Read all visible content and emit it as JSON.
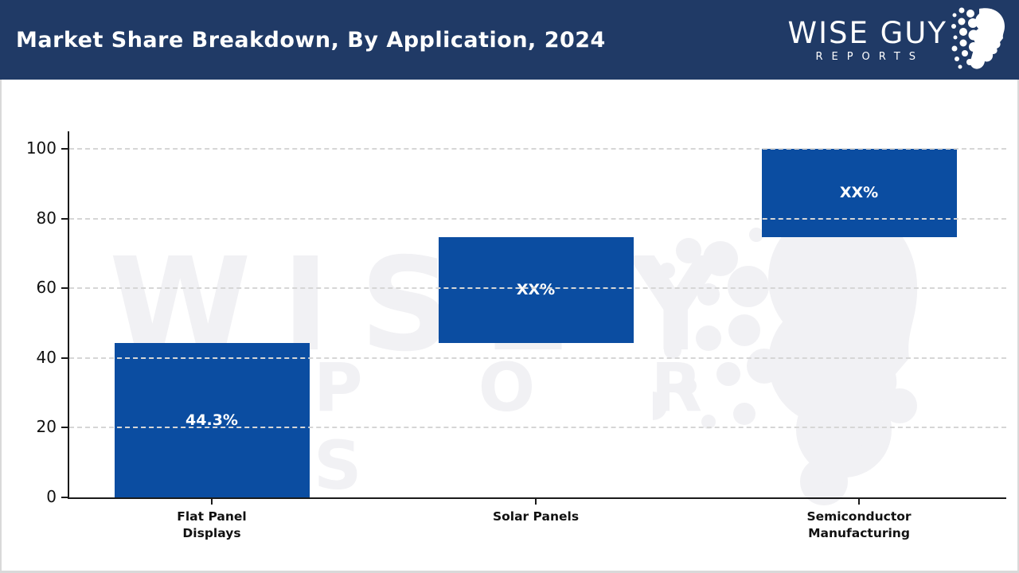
{
  "header": {
    "title": "Market Share Breakdown, By Application, 2024",
    "logo": {
      "line1": "WISE GUY",
      "line2": "REPORTS"
    }
  },
  "watermark": {
    "word1": "WISE",
    "word2": "Y",
    "word3": "P O R T S"
  },
  "colors": {
    "header_bg": "#203a66",
    "bar": "#0b4da1",
    "grid": "#d6d6d6",
    "axis": "#1a1a1a",
    "value_label": "#ffffff",
    "watermark": "#f1f1f4",
    "frame_border": "#d9d9d9"
  },
  "chart_data": {
    "type": "bar",
    "subtype": "floating_stacked_segments",
    "title": "Market Share Breakdown, By Application, 2024",
    "categories": [
      "Flat Panel Displays",
      "Solar Panels",
      "Semiconductor Manufacturing"
    ],
    "category_label_lines": [
      [
        "Flat Panel",
        "Displays"
      ],
      [
        "Solar Panels"
      ],
      [
        "Semiconductor",
        "Manufacturing"
      ]
    ],
    "bars": [
      {
        "category": "Flat Panel Displays",
        "from": 0,
        "to": 44.3,
        "label": "44.3%"
      },
      {
        "category": "Solar Panels",
        "from": 44.3,
        "to": 74.7,
        "label": "XX%"
      },
      {
        "category": "Semiconductor Manufacturing",
        "from": 74.7,
        "to": 100,
        "label": "XX%"
      }
    ],
    "xlabel": "",
    "ylabel": "",
    "ylim": [
      0,
      105
    ],
    "y_ticks": [
      0,
      20,
      40,
      60,
      80,
      100
    ],
    "grid": "horizontal dashed, drawn above bars",
    "legend": "none"
  }
}
